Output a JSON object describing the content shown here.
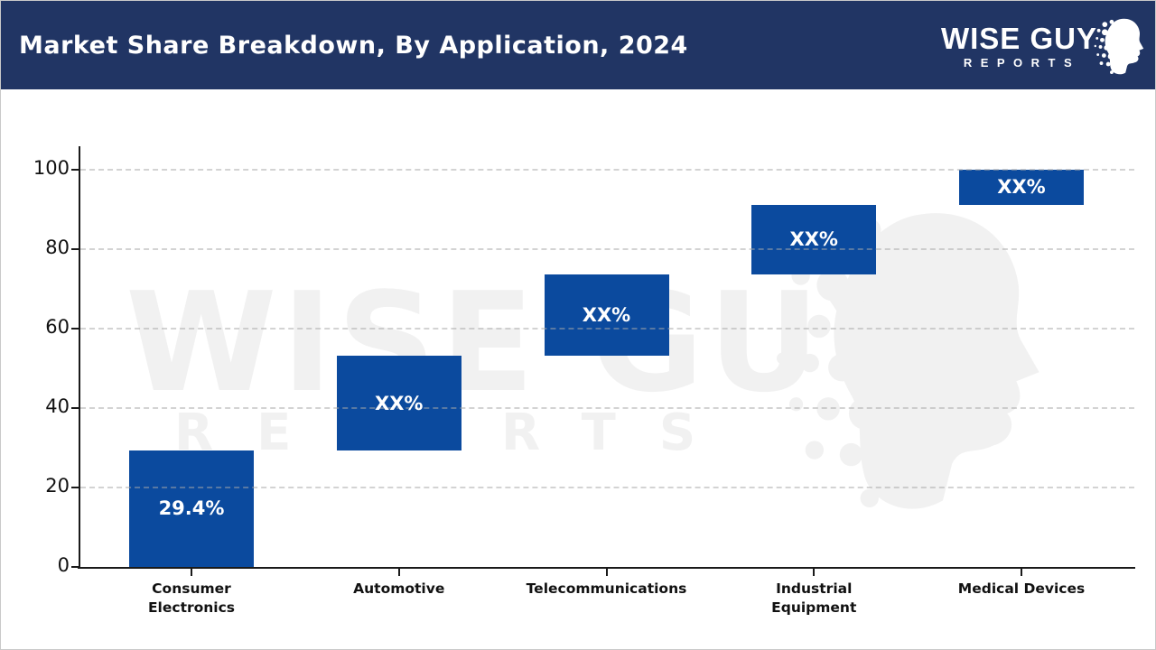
{
  "header": {
    "logo": {
      "line1": "WISE GUY",
      "line2": "REPORTS",
      "icon": "head-dots-icon"
    }
  },
  "watermark": {
    "line1": "WISE GUY",
    "line2": "REPORTS",
    "icon": "head-dots-watermark-icon"
  },
  "chart_data": {
    "type": "bar",
    "subtype": "waterfall",
    "title": "Market Share Breakdown, By Application, 2024",
    "categories": [
      "Consumer\nElectronics",
      "Automotive",
      "Telecommunications",
      "Industrial\nEquipment",
      "Medical Devices"
    ],
    "segments": [
      {
        "category": "Consumer Electronics",
        "label": "29.4%",
        "start": 0,
        "end": 29.4
      },
      {
        "category": "Automotive",
        "label": "XX%",
        "start": 29.4,
        "end": 53.1
      },
      {
        "category": "Telecommunications",
        "label": "XX%",
        "start": 53.1,
        "end": 73.6
      },
      {
        "category": "Industrial Equipment",
        "label": "XX%",
        "start": 73.6,
        "end": 91.2
      },
      {
        "category": "Medical Devices",
        "label": "XX%",
        "start": 91.2,
        "end": 100
      }
    ],
    "yticks": [
      0,
      20,
      40,
      60,
      80,
      100
    ],
    "ylim": [
      0,
      106
    ],
    "grid": "horizontal-dashed",
    "legend": "none",
    "colors": {
      "bar": "#0b4a9e",
      "header_bg": "#213564",
      "grid": "#d9d9d9",
      "axis": "#1a1a1a",
      "bar_label": "#ffffff",
      "watermark": "#f1f1f1"
    }
  }
}
